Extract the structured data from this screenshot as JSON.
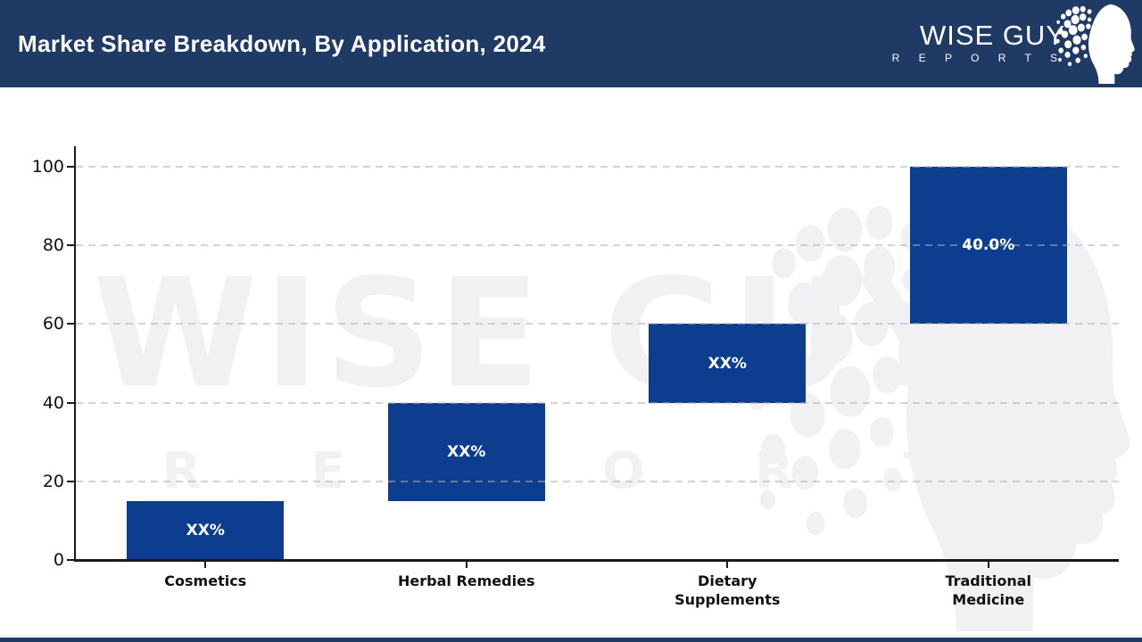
{
  "header": {
    "title": "Market Share Breakdown, By Application, 2024",
    "logo": {
      "word1": "WISE GUY",
      "word2": "R E P O R T S"
    }
  },
  "watermark": {
    "word1": "WISE GUY",
    "word2": "R E P O R T S"
  },
  "chart_data": {
    "type": "bar",
    "variant": "waterfall",
    "title": "Market Share Breakdown, By Application, 2024",
    "categories": [
      "Cosmetics",
      "Herbal Remedies",
      "Dietary\nSupplements",
      "Traditional\nMedicine"
    ],
    "series": [
      {
        "name": "Market Share",
        "segments": [
          {
            "category": "Cosmetics",
            "start": 0,
            "end": 15,
            "label": "XX%"
          },
          {
            "category": "Herbal Remedies",
            "start": 15,
            "end": 40,
            "label": "XX%"
          },
          {
            "category": "Dietary Supplements",
            "start": 40,
            "end": 60,
            "label": "XX%"
          },
          {
            "category": "Traditional Medicine",
            "start": 60,
            "end": 100,
            "label": "40.0%"
          }
        ]
      }
    ],
    "ylim": [
      0,
      100
    ],
    "yticks": [
      0,
      20,
      40,
      60,
      80,
      100
    ],
    "xlabel": "",
    "ylabel": "",
    "grid": "horizontal-dashed",
    "legend": "none",
    "bar_color": "#0c3d8f",
    "bar_label_color": "#ffffff"
  },
  "colors": {
    "header_bg": "#203a66",
    "footer_bg": "#203a66",
    "bar": "#0c3d8f",
    "axis": "#1a1a1a",
    "gridline": "#d9d9d9",
    "watermark": "#f1f1f4",
    "background": "#ffffff"
  }
}
